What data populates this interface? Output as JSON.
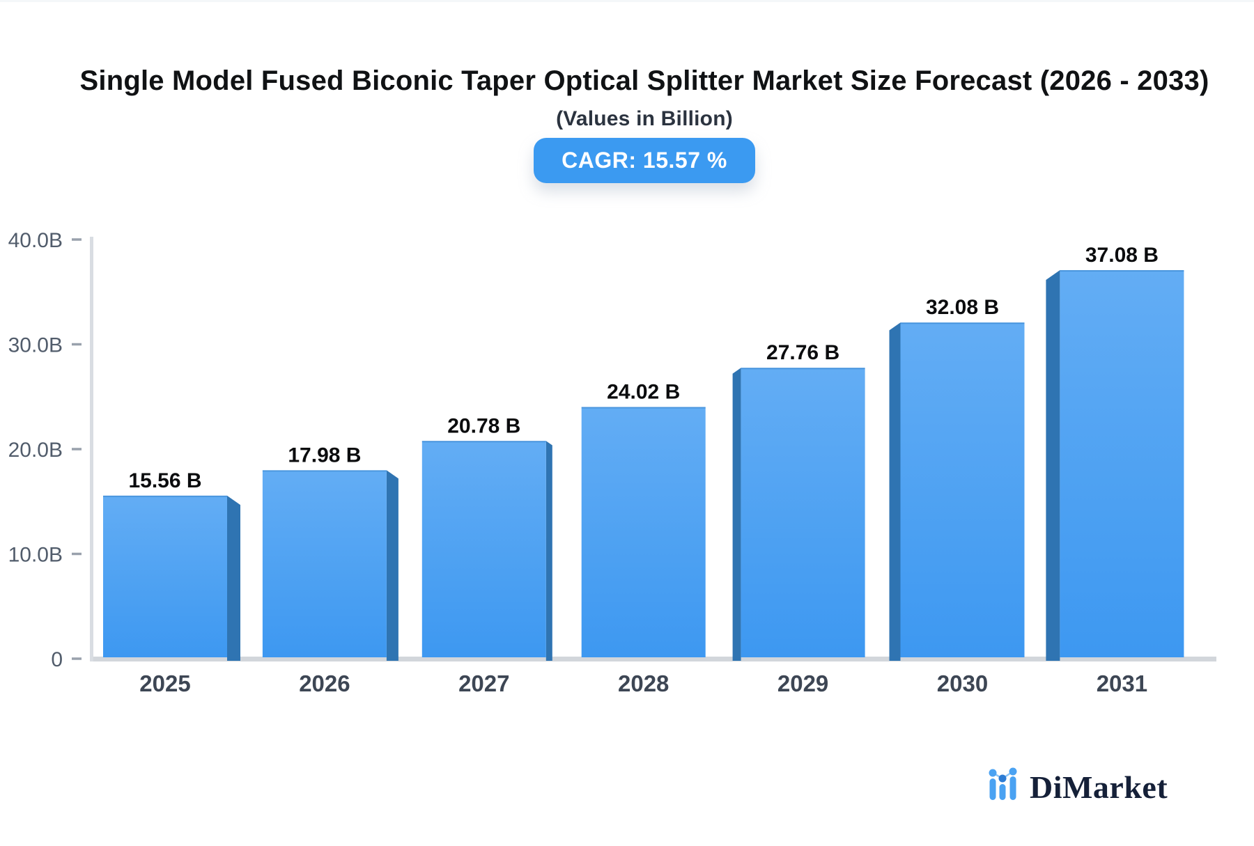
{
  "chart_data": {
    "type": "bar",
    "title": "Single Model Fused Biconic Taper Optical Splitter Market Size Forecast (2026 - 2033)",
    "subtitle": "(Values in Billion)",
    "cagr_label": "CAGR: 15.57 %",
    "categories": [
      "2025",
      "2026",
      "2027",
      "2028",
      "2029",
      "2030",
      "2031"
    ],
    "values": [
      15.56,
      17.98,
      20.78,
      24.02,
      27.76,
      32.08,
      37.08
    ],
    "value_labels": [
      "15.56 B",
      "17.98 B",
      "20.78 B",
      "24.02 B",
      "27.76 B",
      "32.08 B",
      "37.08 B"
    ],
    "unit": "Billion",
    "ylim": [
      0,
      40
    ],
    "yticks": [
      {
        "value": 0,
        "label": "0"
      },
      {
        "value": 10,
        "label": "10.0B"
      },
      {
        "value": 20,
        "label": "20.0B"
      },
      {
        "value": 30,
        "label": "30.0B"
      },
      {
        "value": 40,
        "label": "40.0B"
      }
    ],
    "grid": false,
    "legend": false,
    "colors": {
      "bar_face_top": "#63ADF4",
      "bar_face_bottom": "#3D98F1",
      "bar_side": "#2F74B2",
      "badge_bg": "#3B9AF1",
      "badge_text": "#FFFFFF",
      "axis": "#D9DDE2",
      "baseline": "#D2D6DB",
      "tick": "#99A1AC",
      "tick_label": "#515C6B",
      "year_label": "#3D4654",
      "value_label": "#0B0C0E",
      "title": "#101214",
      "subtitle": "#2B333F"
    }
  },
  "branding": {
    "logo_text": "DiMarket",
    "logo_icon": "bar-chart-logo-icon",
    "logo_text_color": "#152038",
    "logo_icon_color": "#4AA2F2",
    "logo_icon_accent": "#2D7CD4",
    "logo_link_color": "#8CC5F7"
  }
}
